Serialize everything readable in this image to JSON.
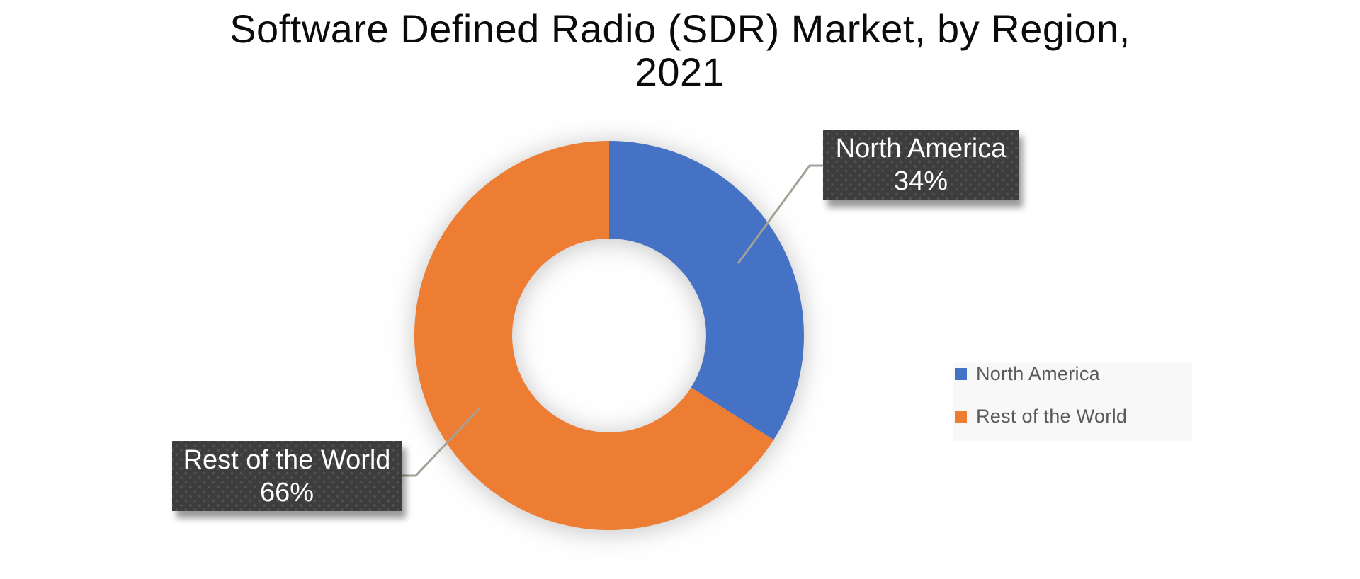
{
  "chart_data": {
    "type": "pie",
    "subtype": "donut",
    "title": "Software Defined Radio (SDR) Market, by Region, 2021",
    "categories": [
      "North America",
      "Rest of the World"
    ],
    "values": [
      34,
      66
    ],
    "unit": "%",
    "colors": [
      "#4472C4",
      "#ED7D31"
    ],
    "start_angle_deg": 0,
    "direction": "clockwise",
    "hole_ratio": 0.5,
    "legend_position": "right",
    "data_labels": [
      "North America 34%",
      "Rest of the World 66%"
    ]
  },
  "title": {
    "line1": "Software Defined Radio (SDR) Market, by Region,",
    "line2": "2021"
  },
  "callouts": [
    {
      "label": "North America",
      "value": "34%"
    },
    {
      "label": "Rest of the World",
      "value": "66%"
    }
  ],
  "legend": {
    "items": [
      {
        "label": "North America",
        "color": "#4472C4"
      },
      {
        "label": "Rest of the World",
        "color": "#ED7D31"
      }
    ]
  },
  "colors": {
    "callout_background": "#3D3D3D",
    "callout_text": "#FFFFFF",
    "leader_line": "#A5A096",
    "legend_text": "#595959",
    "title_text": "#0B0B0B"
  }
}
